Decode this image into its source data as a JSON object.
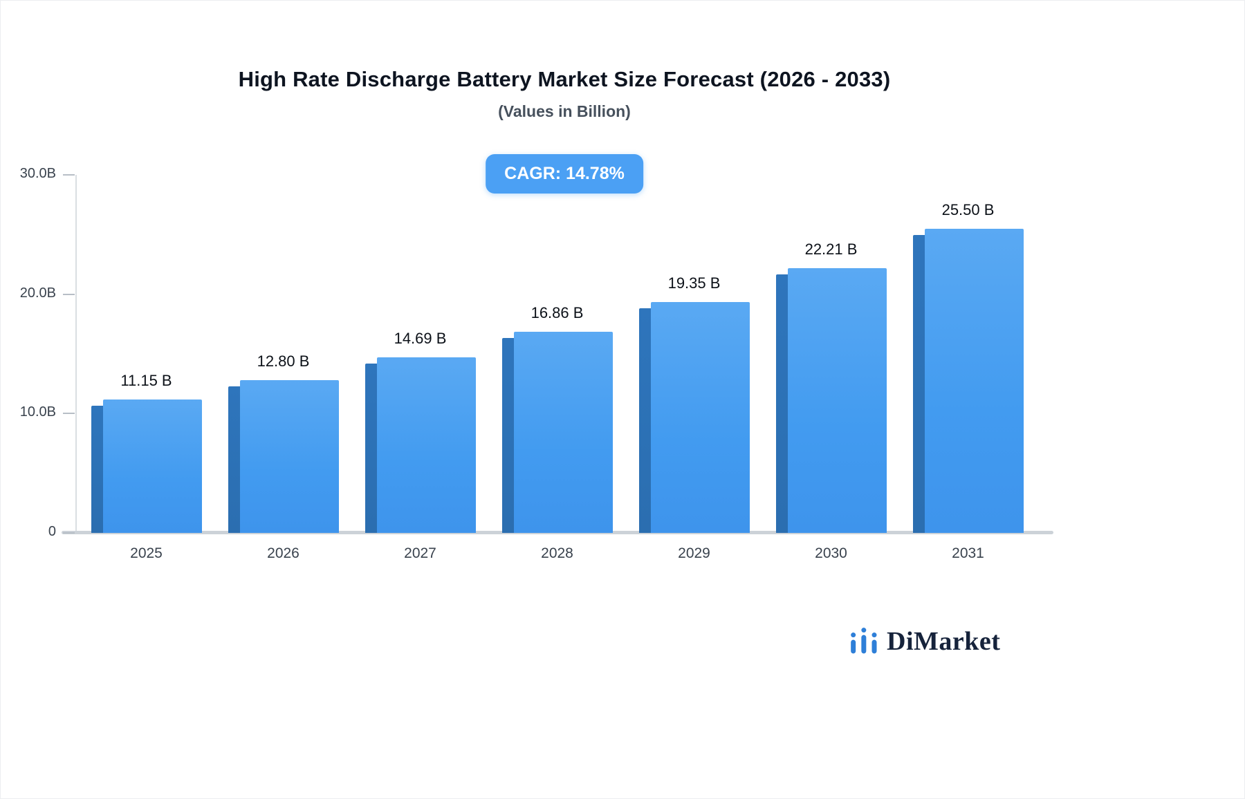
{
  "chart_data": {
    "type": "bar",
    "title": "High Rate Discharge Battery Market Size Forecast (2026 - 2033)",
    "subtitle": "(Values in Billion)",
    "annotation": "CAGR: 14.78%",
    "categories": [
      "2025",
      "2026",
      "2027",
      "2028",
      "2029",
      "2030",
      "2031"
    ],
    "values": [
      11.15,
      12.8,
      14.69,
      16.86,
      19.35,
      22.21,
      25.5
    ],
    "value_labels": [
      "11.15 B",
      "12.80 B",
      "14.69 B",
      "16.86 B",
      "19.35 B",
      "22.21 B",
      "25.50 B"
    ],
    "xlabel": "",
    "ylabel": "",
    "ylim": [
      0,
      30
    ],
    "yticks": [
      {
        "value": 0,
        "label": "0"
      },
      {
        "value": 10,
        "label": "10.0B"
      },
      {
        "value": 20,
        "label": "20.0B"
      },
      {
        "value": 30,
        "label": "30.0B"
      }
    ],
    "grid": false,
    "legend": false,
    "bar_style": "3d-left-shadow"
  },
  "branding": {
    "name": "DiMarket",
    "icon": "bar-chart-icon"
  },
  "colors": {
    "badge_bg": "#4BA0F4",
    "bar_top": "#5AA9F3",
    "bar_mid": "#429BF0",
    "bar_bottom": "#3E94EC",
    "bar_side_top": "#2E75BC",
    "bar_side_bottom": "#2B6EB0",
    "logo_icon": "#2E7FD8",
    "logo_text": "#16233B",
    "axis": "#CCD2D8"
  }
}
